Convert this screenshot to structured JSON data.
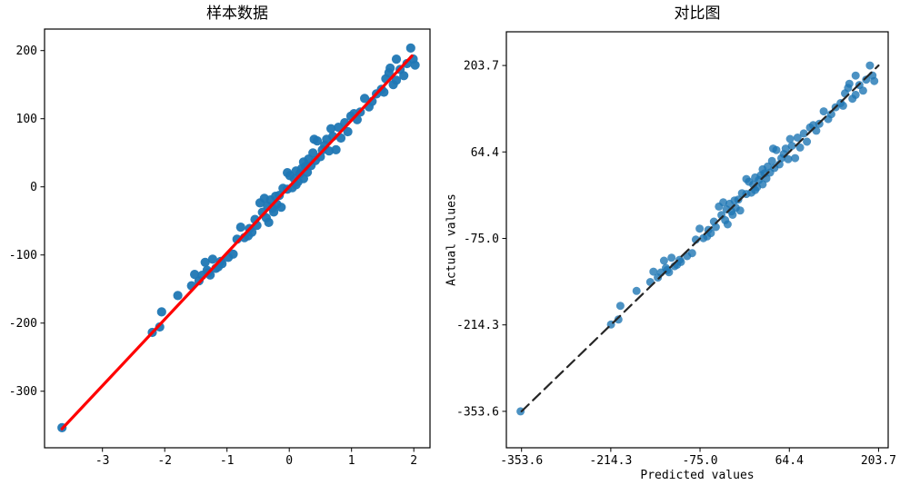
{
  "figure": {
    "background": "#ffffff",
    "spine_color": "#000000"
  },
  "chart_data": {
    "type": "scatter",
    "samples": [
      [
        -3.65,
        -353.6
      ],
      [
        -2.2,
        -213.7
      ],
      [
        -2.08,
        -205.7
      ],
      [
        -2.05,
        -183.5
      ],
      [
        -1.79,
        -159.6
      ],
      [
        -1.57,
        -145.2
      ],
      [
        -1.52,
        -128.5
      ],
      [
        -1.45,
        -138.0
      ],
      [
        -1.4,
        -129.8
      ],
      [
        -1.35,
        -110.8
      ],
      [
        -1.32,
        -122.5
      ],
      [
        -1.3,
        -126.0
      ],
      [
        -1.27,
        -129.4
      ],
      [
        -1.23,
        -106.2
      ],
      [
        -1.18,
        -119.7
      ],
      [
        -1.14,
        -117.4
      ],
      [
        -1.1,
        -109.5
      ],
      [
        -1.08,
        -112.9
      ],
      [
        -0.98,
        -103.5
      ],
      [
        -0.9,
        -98.7
      ],
      [
        -0.84,
        -76.9
      ],
      [
        -0.78,
        -59.2
      ],
      [
        -0.72,
        -74.5
      ],
      [
        -0.66,
        -71.8
      ],
      [
        -0.64,
        -61.2
      ],
      [
        -0.6,
        -66.5
      ],
      [
        -0.55,
        -47.9
      ],
      [
        -0.52,
        -56.7
      ],
      [
        -0.47,
        -23.6
      ],
      [
        -0.43,
        -37.3
      ],
      [
        -0.4,
        -16.9
      ],
      [
        -0.37,
        -45.6
      ],
      [
        -0.35,
        -28.1
      ],
      [
        -0.33,
        -52.3
      ],
      [
        -0.3,
        -19.2
      ],
      [
        -0.27,
        -31.5
      ],
      [
        -0.25,
        -36.9
      ],
      [
        -0.22,
        -13.8
      ],
      [
        -0.2,
        -25.6
      ],
      [
        -0.16,
        -12.5
      ],
      [
        -0.13,
        -30.0
      ],
      [
        -0.1,
        -2.1
      ],
      [
        -0.03,
        -3.4
      ],
      [
        -0.03,
        20.8
      ],
      [
        0.01,
        16.4
      ],
      [
        0.05,
        -1.2
      ],
      [
        0.08,
        11.9
      ],
      [
        0.11,
        3.1
      ],
      [
        0.11,
        23.3
      ],
      [
        0.14,
        7.5
      ],
      [
        0.17,
        19.2
      ],
      [
        0.2,
        26.8
      ],
      [
        0.23,
        12.1
      ],
      [
        0.23,
        36.4
      ],
      [
        0.26,
        29.8
      ],
      [
        0.29,
        21.5
      ],
      [
        0.31,
        40.8
      ],
      [
        0.35,
        31.2
      ],
      [
        0.38,
        49.8
      ],
      [
        0.4,
        69.8
      ],
      [
        0.42,
        38.6
      ],
      [
        0.45,
        67.5
      ],
      [
        0.5,
        44.3
      ],
      [
        0.53,
        54.2
      ],
      [
        0.57,
        61.0
      ],
      [
        0.6,
        69.8
      ],
      [
        0.64,
        52.7
      ],
      [
        0.67,
        85.3
      ],
      [
        0.7,
        74.2
      ],
      [
        0.75,
        54.4
      ],
      [
        0.79,
        87.5
      ],
      [
        0.83,
        71.6
      ],
      [
        0.89,
        94.2
      ],
      [
        0.94,
        80.9
      ],
      [
        0.99,
        103.8
      ],
      [
        1.04,
        107.5
      ],
      [
        1.09,
        98.6
      ],
      [
        1.14,
        109.8
      ],
      [
        1.21,
        129.8
      ],
      [
        1.28,
        117.4
      ],
      [
        1.33,
        125.3
      ],
      [
        1.4,
        136.4
      ],
      [
        1.48,
        143.1
      ],
      [
        1.52,
        138.9
      ],
      [
        1.55,
        158.7
      ],
      [
        1.6,
        167.5
      ],
      [
        1.62,
        174.3
      ],
      [
        1.67,
        150.2
      ],
      [
        1.72,
        156.4
      ],
      [
        1.72,
        187.5
      ],
      [
        1.78,
        172.3
      ],
      [
        1.84,
        163.2
      ],
      [
        1.89,
        180.9
      ],
      [
        1.95,
        203.7
      ],
      [
        1.99,
        187.6
      ],
      [
        2.02,
        178.7
      ]
    ],
    "fit": {
      "slope": 97.4,
      "intercept": 0.3
    },
    "charts": [
      {
        "id": "sample-data",
        "title": "样本数据",
        "xlabel": "",
        "ylabel": "",
        "xlim": [
          -3.93,
          2.26
        ],
        "ylim": [
          -383.0,
          231.6
        ],
        "xticks": [
          {
            "v": -3,
            "label": "-3"
          },
          {
            "v": -2,
            "label": "-2"
          },
          {
            "v": -1,
            "label": "-1"
          },
          {
            "v": 0,
            "label": "0"
          },
          {
            "v": 1,
            "label": "1"
          },
          {
            "v": 2,
            "label": "2"
          }
        ],
        "yticks": [
          {
            "v": 200,
            "label": "200"
          },
          {
            "v": 100,
            "label": "100"
          },
          {
            "v": 0,
            "label": "0"
          },
          {
            "v": -100,
            "label": "-100"
          },
          {
            "v": -200,
            "label": "-200"
          },
          {
            "v": -300,
            "label": "-300"
          }
        ],
        "points_from": "xy",
        "marker": {
          "color": "#1f77b4",
          "radius": 5.1,
          "opacity": 0.95
        },
        "line": {
          "kind": "fit",
          "x_start": -3.65,
          "x_end": 1.97,
          "color": "#ff0000",
          "width": 3.2,
          "dash": ""
        }
      },
      {
        "id": "comparison",
        "title": "对比图",
        "xlabel": "Predicted values",
        "ylabel": "Actual values",
        "xlim": [
          -377.3,
          218.7
        ],
        "ylim": [
          -412.3,
          258.0
        ],
        "xticks": [
          {
            "v": -353.6,
            "label": "-353.6"
          },
          {
            "v": -214.3,
            "label": "-214.3"
          },
          {
            "v": -75.0,
            "label": "-75.0"
          },
          {
            "v": 64.4,
            "label": "64.4"
          },
          {
            "v": 203.7,
            "label": "203.7"
          }
        ],
        "yticks": [
          {
            "v": 203.7,
            "label": "203.7"
          },
          {
            "v": 64.4,
            "label": "64.4"
          },
          {
            "v": -75.0,
            "label": "-75.0"
          },
          {
            "v": -214.3,
            "label": "-214.3"
          },
          {
            "v": -353.6,
            "label": "-353.6"
          }
        ],
        "points_from": "pred_vs_actual",
        "marker": {
          "color": "#1f77b4",
          "radius": 4.5,
          "opacity": 0.8
        },
        "line": {
          "kind": "diagonal",
          "from": -353.6,
          "to": 203.7,
          "color": "#262626",
          "width": 2.2,
          "dash": "11,6.5"
        }
      }
    ]
  }
}
